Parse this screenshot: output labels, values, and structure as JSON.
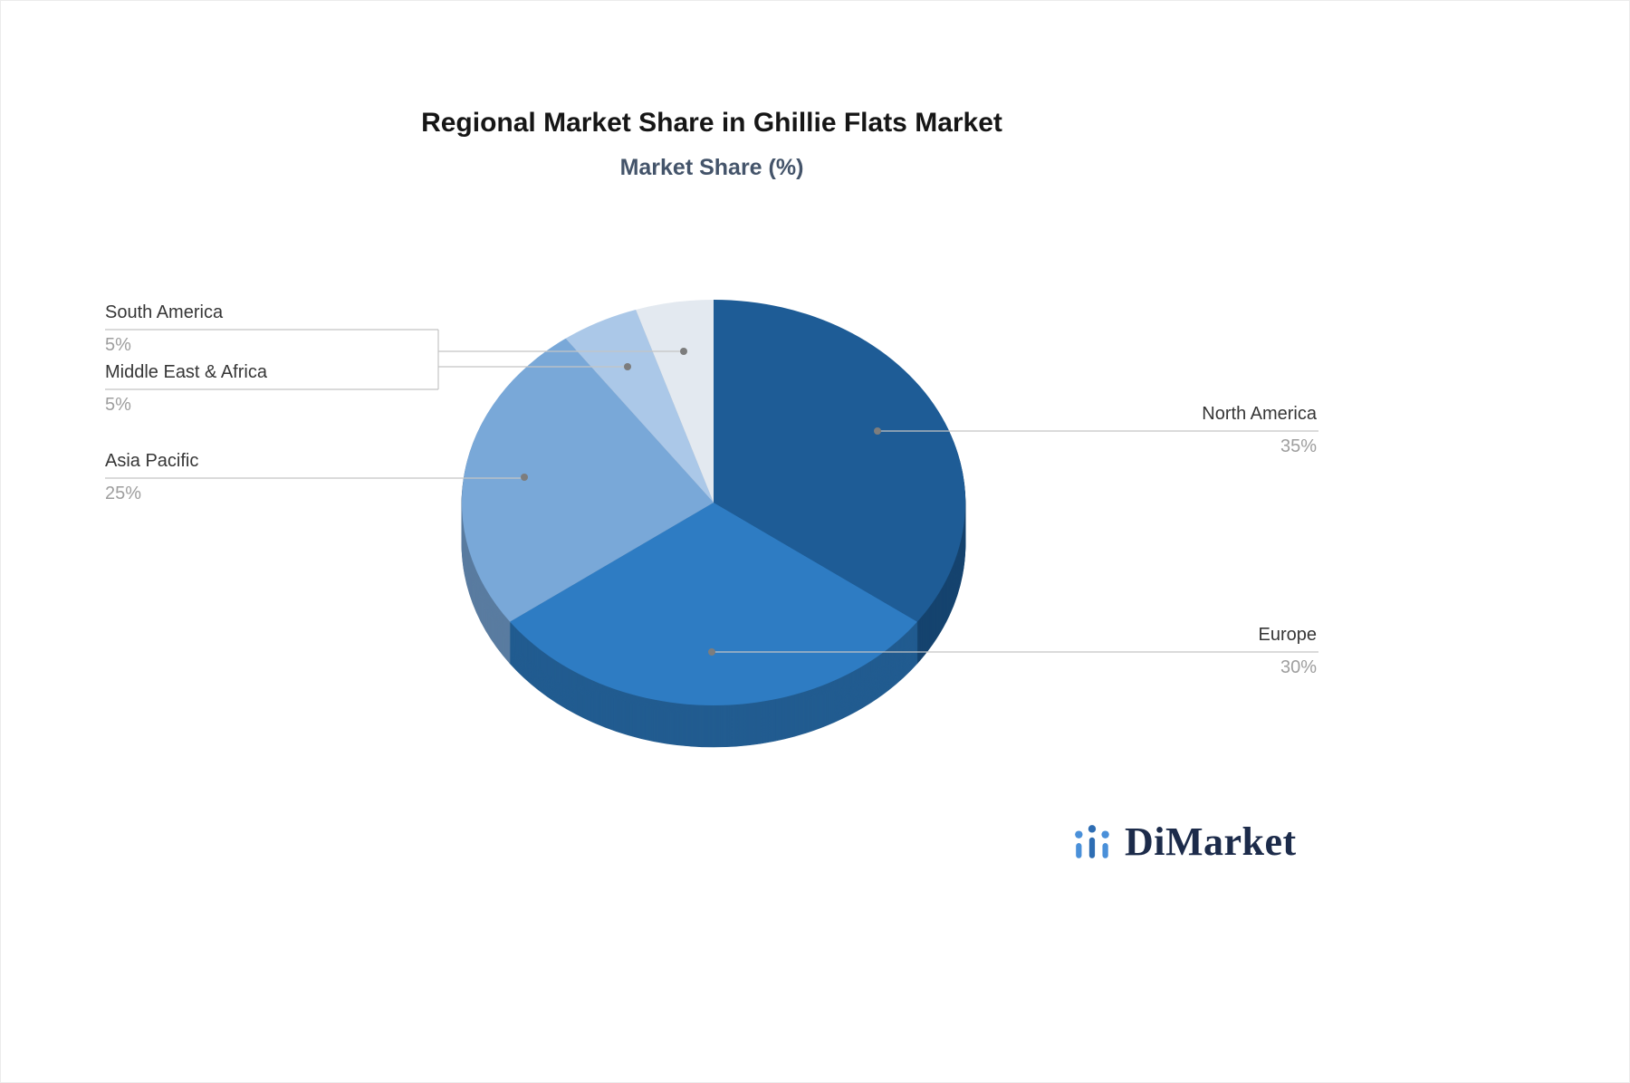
{
  "chart_data": {
    "type": "pie",
    "title": "Regional Market Share in Ghillie Flats Market",
    "subtitle": "Market Share (%)",
    "unit": "%",
    "effect": "3d",
    "start_angle_deg": -90,
    "direction": "clockwise",
    "legend_position": "callout-labels",
    "slices": [
      {
        "label": "North America",
        "value": 35,
        "value_label": "35%",
        "color": "#1e5c96"
      },
      {
        "label": "Europe",
        "value": 30,
        "value_label": "30%",
        "color": "#2e7cc3"
      },
      {
        "label": "Asia Pacific",
        "value": 25,
        "value_label": "25%",
        "color": "#79a8d8"
      },
      {
        "label": "Middle East & Africa",
        "value": 5,
        "value_label": "5%",
        "color": "#abc8e8"
      },
      {
        "label": "South America",
        "value": 5,
        "value_label": "5%",
        "color": "#e3e9f0"
      }
    ]
  },
  "brand": {
    "name": "DiMarket",
    "icon": "bar-chart-dots-icon",
    "text_color": "#1c2b4a",
    "icon_color": "#4a90d9",
    "icon_color_dark": "#2e6db3"
  }
}
